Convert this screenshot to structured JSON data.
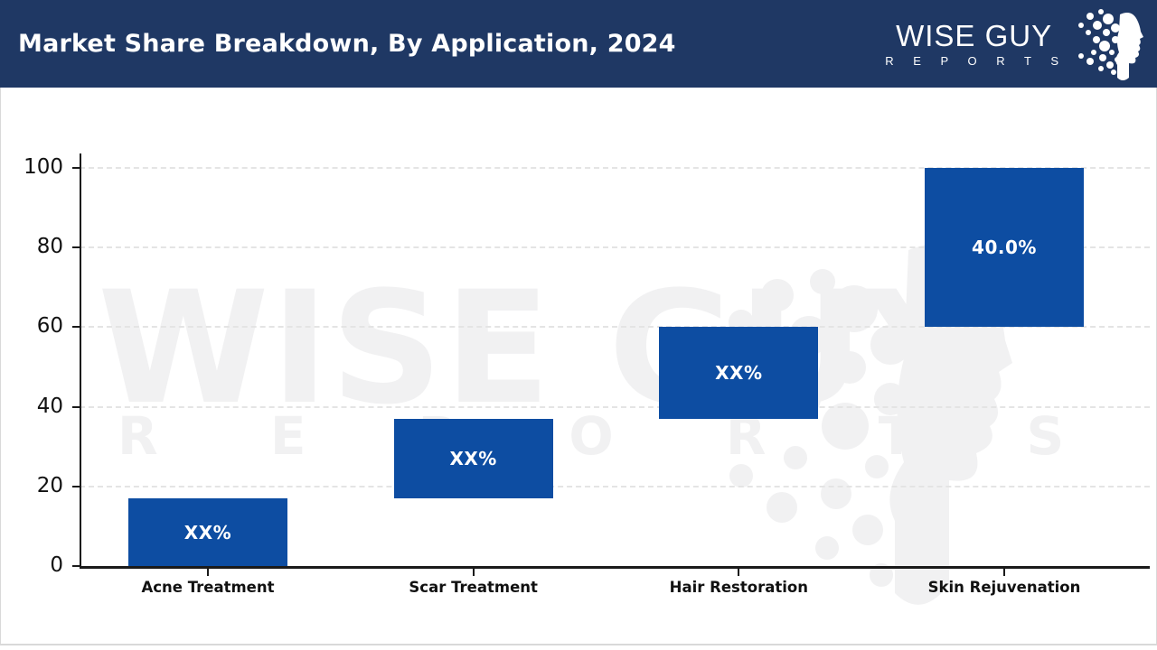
{
  "header": {
    "title": "Market Share Breakdown, By Application, 2024",
    "logo": {
      "brand": "WISE GUY",
      "sub": "R E P O R T S"
    }
  },
  "watermark": {
    "line1": "WISE GUY",
    "line2": "R E P O R T S"
  },
  "colors": {
    "header_bg": "#1f3864",
    "bar": "#0d4da2",
    "bar_label": "#ffffff",
    "grid": "#e4e4e4",
    "axis": "#1a1a1a",
    "watermark": "#f1f1f2"
  },
  "chart_data": {
    "type": "bar",
    "subtype": "waterfall",
    "title": "Market Share Breakdown, By Application, 2024",
    "categories": [
      "Acne Treatment",
      "Scar Treatment",
      "Hair Restoration",
      "Skin Rejuvenation"
    ],
    "segments": [
      {
        "category": "Acne Treatment",
        "start": 0,
        "end": 17,
        "value": 17,
        "label": "XX%"
      },
      {
        "category": "Scar Treatment",
        "start": 17,
        "end": 37,
        "value": 20,
        "label": "XX%"
      },
      {
        "category": "Hair Restoration",
        "start": 37,
        "end": 60,
        "value": 23,
        "label": "XX%"
      },
      {
        "category": "Skin Rejuvenation",
        "start": 60,
        "end": 100,
        "value": 40,
        "label": "40.0%"
      }
    ],
    "xlabel": "",
    "ylabel": "",
    "ylim": [
      0,
      100
    ],
    "yticks": [
      0,
      20,
      40,
      60,
      80,
      100
    ],
    "grid": "horizontal-dashed",
    "legend": "none",
    "bar_color": "#0d4da2"
  }
}
